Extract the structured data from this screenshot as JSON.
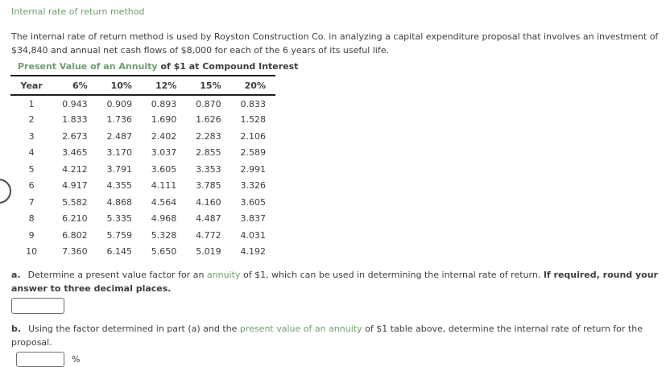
{
  "colors": {
    "link_green": "#6d9e6d",
    "body_text": "#3d3d3d",
    "table_border": "#1f1f1f",
    "input_border": "#6e6e6e"
  },
  "page": {
    "title": "Internal rate of return method",
    "intro": "The internal rate of return method is used by Royston Construction Co. in analyzing a capital expenditure proposal that involves an investment of $34,840 and annual net cash flows of $8,000 for each of the 6 years of its useful life."
  },
  "table": {
    "title_link": "Present Value of an Annuity",
    "title_rest": " of $1 at Compound Interest",
    "headers": [
      "Year",
      "6%",
      "10%",
      "12%",
      "15%",
      "20%"
    ],
    "rows": [
      [
        "1",
        "0.943",
        "0.909",
        "0.893",
        "0.870",
        "0.833"
      ],
      [
        "2",
        "1.833",
        "1.736",
        "1.690",
        "1.626",
        "1.528"
      ],
      [
        "3",
        "2.673",
        "2.487",
        "2.402",
        "2.283",
        "2.106"
      ],
      [
        "4",
        "3.465",
        "3.170",
        "3.037",
        "2.855",
        "2.589"
      ],
      [
        "5",
        "4.212",
        "3.791",
        "3.605",
        "3.353",
        "2.991"
      ],
      [
        "6",
        "4.917",
        "4.355",
        "4.111",
        "3.785",
        "3.326"
      ],
      [
        "7",
        "5.582",
        "4.868",
        "4.564",
        "4.160",
        "3.605"
      ],
      [
        "8",
        "6.210",
        "5.335",
        "4.968",
        "4.487",
        "3.837"
      ],
      [
        "9",
        "6.802",
        "5.759",
        "5.328",
        "4.772",
        "4.031"
      ],
      [
        "10",
        "7.360",
        "6.145",
        "5.650",
        "5.019",
        "4.192"
      ]
    ]
  },
  "question_a": {
    "label": "a.",
    "text_1": "Determine a present value factor for an ",
    "link": "annuity",
    "text_2": " of $1, which can be used in determining the internal rate of return. ",
    "bold": "If required, round your answer to three decimal places.",
    "input_value": ""
  },
  "question_b": {
    "label": "b.",
    "text_1": "Using the factor determined in part (a) and the ",
    "link": "present value of an annuity",
    "text_2": " of $1 table above, determine the internal rate of return for the proposal.",
    "input_value": "",
    "suffix": "%"
  }
}
